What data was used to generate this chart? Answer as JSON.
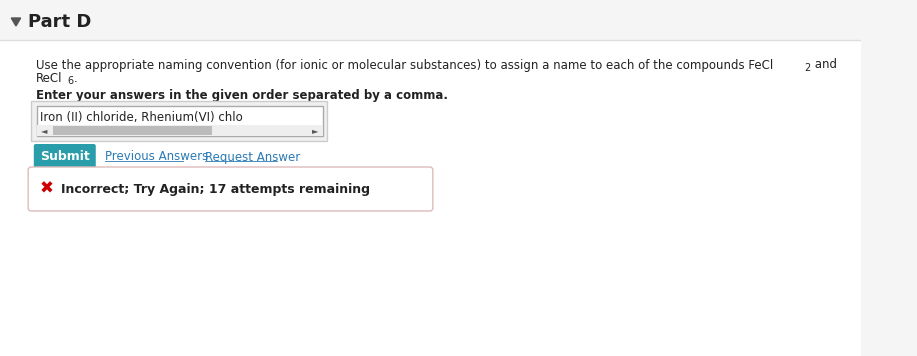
{
  "background_color": "#f5f5f5",
  "title_text": "Part D",
  "title_fontsize": 13,
  "title_color": "#222222",
  "arrow_color": "#555555",
  "body_bg": "#ffffff",
  "question_line1": "Use the appropriate naming convention (for ionic or molecular substances) to assign a name to each of the compounds FeCl",
  "question_sub1": "2",
  "question_mid": " and",
  "question_line2_pre": "ReCl",
  "question_sub2": "6",
  "question_line2_post": ".",
  "bold_text": "Enter your answers in the given order separated by a comma.",
  "input_text": "Iron (II) chloride, Rhenium(VI) chlo",
  "input_box_color": "#ffffff",
  "input_border_color": "#aaaaaa",
  "scrollbar_color": "#bbbbbb",
  "submit_bg": "#2a9daa",
  "submit_text": "Submit",
  "submit_text_color": "#ffffff",
  "link1": "Previous Answers",
  "link2": "Request Answer",
  "link_color": "#2a7ab5",
  "error_box_bg": "#ffffff",
  "error_box_border": "#ddbbbb",
  "error_icon_color": "#cc0000",
  "error_text": "Incorrect; Try Again; 17 attempts remaining",
  "error_text_color": "#222222",
  "divider_color": "#dddddd",
  "header_bg": "#f5f5f5"
}
